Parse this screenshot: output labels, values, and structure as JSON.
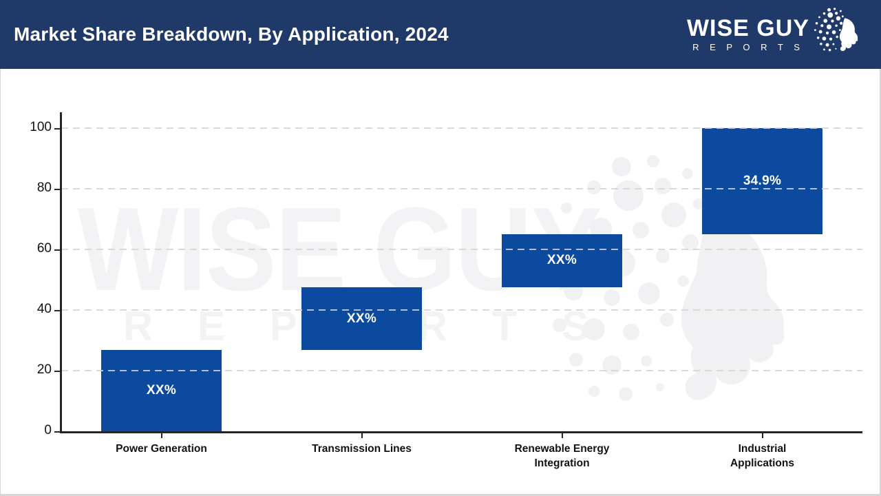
{
  "header": {
    "title": "Market Share Breakdown, By Application, 2024",
    "logo": {
      "name_line": "WISE GUY",
      "reports_line": "R E P O R T S"
    }
  },
  "watermark": {
    "name_line": "WISE GUY",
    "reports_line": "R E P O R T S"
  },
  "chart_data": {
    "type": "bar",
    "subtype": "floating-segment-breakdown",
    "title": "Market Share Breakdown, By Application, 2024",
    "categories": [
      [
        "Power Generation"
      ],
      [
        "Transmission Lines"
      ],
      [
        "Renewable Energy",
        "Integration"
      ],
      [
        "Industrial",
        "Applications"
      ]
    ],
    "segments": [
      {
        "category": "Power Generation",
        "start": 0,
        "end": 26.9,
        "value": 26.9,
        "label": "XX%"
      },
      {
        "category": "Transmission Lines",
        "start": 26.9,
        "end": 47.4,
        "value": 20.5,
        "label": "XX%"
      },
      {
        "category": "Renewable Energy Integration",
        "start": 47.4,
        "end": 65.1,
        "value": 17.7,
        "label": "XX%"
      },
      {
        "category": "Industrial Applications",
        "start": 65.1,
        "end": 100,
        "value": 34.9,
        "label": "34.9%"
      }
    ],
    "yticks": [
      0,
      20,
      40,
      60,
      80,
      100
    ],
    "ylim": [
      0,
      100
    ],
    "grid": true,
    "legend": "none",
    "bar_color": "#0b4a9e",
    "grid_color": "#d9d9d9",
    "axis_color": "#262626",
    "header_bg_color": "#1f3a68",
    "watermark_color": "#f3f3f6"
  }
}
